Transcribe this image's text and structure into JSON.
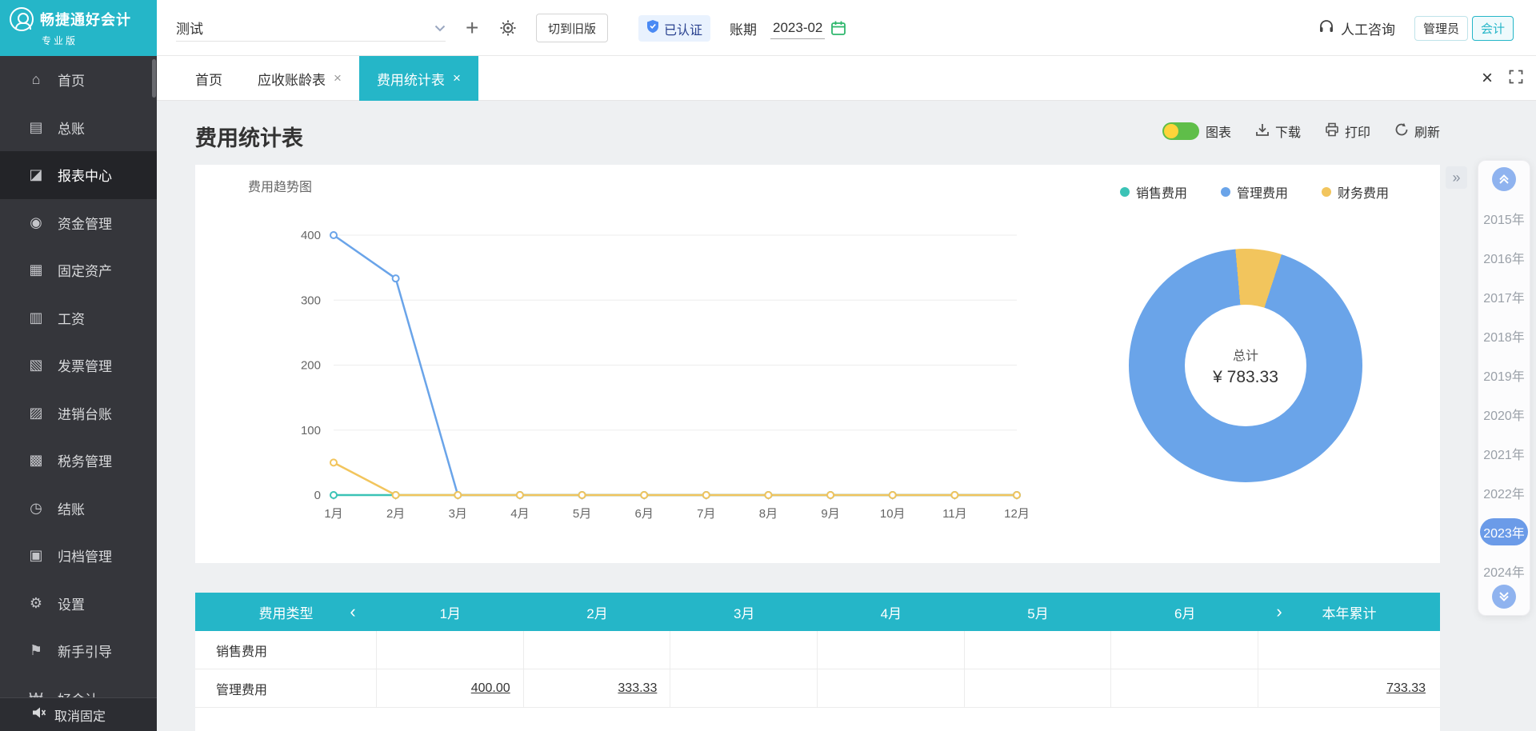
{
  "brand": {
    "app_name": "畅捷通好会计",
    "edition": "专业版"
  },
  "topbar": {
    "account_selector": "测试",
    "add_button": "+",
    "switch_old_version": "切到旧版",
    "certified_badge": "已认证",
    "period_label": "账期",
    "period_value": "2023-02",
    "support_label": "人工咨询",
    "role_admin": "管理员",
    "role_accountant": "会计"
  },
  "icons": {
    "tab_close": "×",
    "close_tabs": "×",
    "collapse_right": "»",
    "month_prev": "‹",
    "month_next": "›"
  },
  "sidebar": {
    "items": [
      {
        "key": "home",
        "label": "首页",
        "icon": "home-icon",
        "glyph": "⌂"
      },
      {
        "key": "general-ledger",
        "label": "总账",
        "icon": "general-ledger-icon",
        "glyph": "▤"
      },
      {
        "key": "report-center",
        "label": "报表中心",
        "icon": "report-center-icon",
        "glyph": "◪",
        "active": true
      },
      {
        "key": "funds",
        "label": "资金管理",
        "icon": "funds-icon",
        "glyph": "◉"
      },
      {
        "key": "fixed-assets",
        "label": "固定资产",
        "icon": "fixed-assets-icon",
        "glyph": "▦"
      },
      {
        "key": "payroll",
        "label": "工资",
        "icon": "payroll-icon",
        "glyph": "▥"
      },
      {
        "key": "invoices",
        "label": "发票管理",
        "icon": "invoice-icon",
        "glyph": "▧"
      },
      {
        "key": "purchase-sales",
        "label": "进销台账",
        "icon": "purchase-sales-ledger-icon",
        "glyph": "▨"
      },
      {
        "key": "tax",
        "label": "税务管理",
        "icon": "tax-icon",
        "glyph": "▩"
      },
      {
        "key": "closing",
        "label": "结账",
        "icon": "closing-icon",
        "glyph": "◷"
      },
      {
        "key": "archive",
        "label": "归档管理",
        "icon": "archive-icon",
        "glyph": "▣"
      },
      {
        "key": "settings",
        "label": "设置",
        "icon": "settings-icon",
        "glyph": "⚙"
      },
      {
        "key": "guide",
        "label": "新手引导",
        "icon": "guide-icon",
        "glyph": "⚑"
      },
      {
        "key": "haokuaiji",
        "label": "好会计",
        "icon": "haokuaiji-icon",
        "glyph": "₩"
      }
    ],
    "unpin_label": "取消固定"
  },
  "tabs": [
    {
      "key": "home",
      "label": "首页",
      "closable": false,
      "active": false
    },
    {
      "key": "receivable-aging",
      "label": "应收账龄表",
      "closable": true,
      "active": false
    },
    {
      "key": "expense-statistics",
      "label": "费用统计表",
      "closable": true,
      "active": true
    }
  ],
  "page": {
    "title": "费用统计表",
    "chart_toggle_label": "图表",
    "download_label": "下载",
    "print_label": "打印",
    "refresh_label": "刷新"
  },
  "chart_data": [
    {
      "type": "line",
      "title": "费用趋势图",
      "categories": [
        "1月",
        "2月",
        "3月",
        "4月",
        "5月",
        "6月",
        "7月",
        "8月",
        "9月",
        "10月",
        "11月",
        "12月"
      ],
      "series": [
        {
          "key": "sales-expense",
          "name": "销售费用",
          "color": "#3bc3b6",
          "values": [
            0,
            0,
            0,
            0,
            0,
            0,
            0,
            0,
            0,
            0,
            0,
            0
          ]
        },
        {
          "key": "management-expense",
          "name": "管理费用",
          "color": "#6aa4e9",
          "values": [
            400,
            333.33,
            0,
            0,
            0,
            0,
            0,
            0,
            0,
            0,
            0,
            0
          ]
        },
        {
          "key": "finance-expense",
          "name": "财务费用",
          "color": "#f2c55d",
          "values": [
            50,
            0,
            0,
            0,
            0,
            0,
            0,
            0,
            0,
            0,
            0,
            0
          ]
        }
      ],
      "ylim": [
        0,
        400
      ],
      "yticks": [
        0,
        100,
        200,
        300,
        400
      ],
      "grid": true,
      "legend_position": "top-right"
    },
    {
      "type": "pie",
      "center_label": "总计",
      "center_value": "¥ 783.33",
      "total": 783.33,
      "slices": [
        {
          "key": "management-expense",
          "name": "管理费用",
          "value": 733.33,
          "color": "#6aa4e9"
        },
        {
          "key": "finance-expense",
          "name": "财务费用",
          "value": 50,
          "color": "#f2c55d"
        },
        {
          "key": "sales-expense",
          "name": "销售费用",
          "value": 0,
          "color": "#3bc3b6"
        }
      ]
    }
  ],
  "table": {
    "header": [
      "费用类型",
      "1月",
      "2月",
      "3月",
      "4月",
      "5月",
      "6月",
      "本年累计"
    ],
    "rows": [
      {
        "key": "sales-expense",
        "type": "销售费用",
        "values": [
          "",
          "",
          "",
          "",
          "",
          "",
          ""
        ]
      },
      {
        "key": "management-expense",
        "type": "管理费用",
        "values": [
          "400.00",
          "333.33",
          "",
          "",
          "",
          "",
          "733.33"
        ]
      }
    ]
  },
  "year_rail": {
    "years": [
      {
        "key": "2015",
        "label": "2015年"
      },
      {
        "key": "2016",
        "label": "2016年"
      },
      {
        "key": "2017",
        "label": "2017年"
      },
      {
        "key": "2018",
        "label": "2018年"
      },
      {
        "key": "2019",
        "label": "2019年"
      },
      {
        "key": "2020",
        "label": "2020年"
      },
      {
        "key": "2021",
        "label": "2021年"
      },
      {
        "key": "2022",
        "label": "2022年"
      },
      {
        "key": "2023",
        "label": "2023年"
      },
      {
        "key": "2024",
        "label": "2024年"
      }
    ],
    "selected": "2023"
  },
  "colors": {
    "brand_teal": "#25b6c8",
    "sidebar_bg": "#35363b",
    "sidebar_active_bg": "#232428",
    "year_selected": "#6b9be8",
    "toggle_on": "#5fbe49",
    "toggle_knob": "#ffd43a"
  }
}
